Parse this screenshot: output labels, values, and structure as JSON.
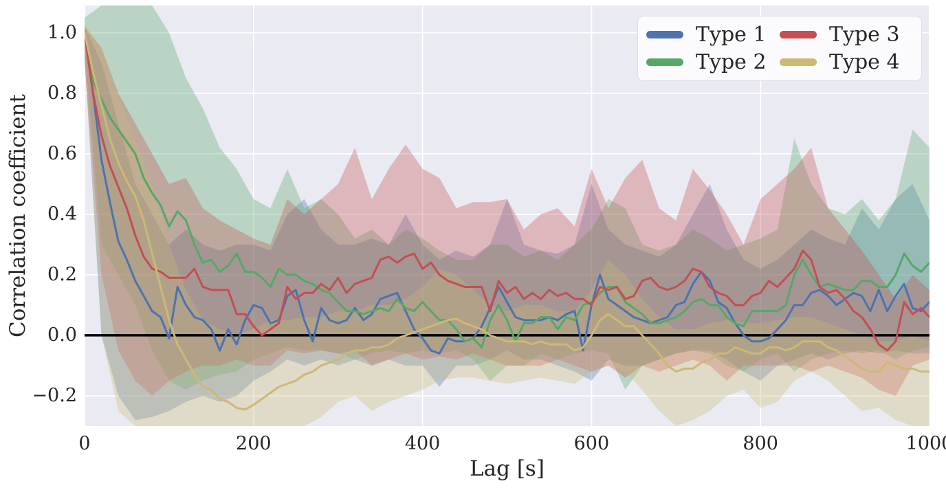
{
  "figure": {
    "background": "#ffffff",
    "plot_background": "#eaeaf2",
    "grid_color": "#ffffff",
    "zero_line_color": "#000000",
    "text_color": "#262626",
    "legend_background": "#fcfcfe",
    "legend_border": "#dcdce4"
  },
  "chart_data": {
    "type": "line",
    "title": "",
    "xlabel": "Lag [s]",
    "ylabel": "Correlation coefficient",
    "xlim": [
      0,
      1000
    ],
    "ylim": [
      -0.3,
      1.09
    ],
    "xticks": [
      0,
      200,
      400,
      600,
      800,
      1000
    ],
    "yticks": [
      -0.2,
      0.0,
      0.2,
      0.4,
      0.6,
      0.8,
      1.0
    ],
    "grid": true,
    "zero_line": true,
    "legend_position": "upper right",
    "legend_columns": 2,
    "band_opacity": 0.33,
    "x_start": 0,
    "x_step": 10,
    "band_x_step": 20,
    "series": [
      {
        "name": "Type 1",
        "color": "#4c72b0",
        "values": [
          1.0,
          0.8,
          0.58,
          0.44,
          0.31,
          0.25,
          0.18,
          0.13,
          0.08,
          0.06,
          -0.01,
          0.16,
          0.1,
          0.06,
          0.05,
          0.02,
          -0.05,
          0.02,
          -0.03,
          0.05,
          0.1,
          0.09,
          0.04,
          0.05,
          0.13,
          0.15,
          0.05,
          -0.02,
          0.09,
          0.05,
          0.04,
          0.05,
          0.09,
          0.05,
          0.07,
          0.12,
          0.13,
          0.14,
          0.08,
          0.02,
          -0.01,
          -0.05,
          -0.06,
          -0.01,
          -0.02,
          -0.02,
          -0.01,
          0.03,
          0.09,
          0.16,
          0.11,
          0.06,
          0.05,
          0.05,
          0.05,
          0.06,
          0.05,
          0.07,
          0.08,
          -0.05,
          0.1,
          0.2,
          0.12,
          0.1,
          0.08,
          0.06,
          0.05,
          0.04,
          0.05,
          0.06,
          0.1,
          0.11,
          0.17,
          0.21,
          0.18,
          0.11,
          0.09,
          0.04,
          0.0,
          -0.02,
          -0.02,
          -0.01,
          0.02,
          0.05,
          0.1,
          0.1,
          0.14,
          0.15,
          0.13,
          0.1,
          0.12,
          0.14,
          0.13,
          0.08,
          0.15,
          0.08,
          0.13,
          0.17,
          0.09,
          0.08,
          0.11
        ],
        "band_lo": [
          0.92,
          0.0,
          -0.2,
          -0.28,
          -0.27,
          -0.25,
          -0.22,
          -0.2,
          -0.22,
          -0.2,
          -0.15,
          -0.12,
          -0.08,
          -0.1,
          -0.08,
          -0.1,
          -0.08,
          -0.1,
          -0.08,
          -0.1,
          -0.1,
          -0.17,
          -0.1,
          -0.1,
          -0.08,
          -0.05,
          -0.08,
          -0.08,
          -0.1,
          -0.12,
          -0.15,
          -0.08,
          -0.1,
          -0.1,
          -0.08,
          -0.06,
          -0.05,
          -0.05,
          -0.08,
          -0.12,
          -0.15,
          -0.1,
          -0.08,
          -0.06,
          -0.08,
          -0.06,
          -0.05,
          -0.06,
          -0.05,
          -0.06,
          -0.06
        ],
        "band_hi": [
          1.02,
          0.9,
          0.7,
          0.5,
          0.4,
          0.3,
          0.35,
          0.3,
          0.28,
          0.3,
          0.3,
          0.28,
          0.4,
          0.45,
          0.35,
          0.3,
          0.3,
          0.32,
          0.3,
          0.4,
          0.3,
          0.25,
          0.28,
          0.26,
          0.3,
          0.45,
          0.3,
          0.28,
          0.27,
          0.3,
          0.5,
          0.35,
          0.3,
          0.28,
          0.26,
          0.3,
          0.4,
          0.5,
          0.35,
          0.25,
          0.22,
          0.25,
          0.3,
          0.35,
          0.32,
          0.3,
          0.42,
          0.35,
          0.45,
          0.5,
          0.38
        ]
      },
      {
        "name": "Type 2",
        "color": "#55a868",
        "values": [
          1.0,
          0.84,
          0.78,
          0.72,
          0.68,
          0.64,
          0.6,
          0.52,
          0.47,
          0.43,
          0.36,
          0.41,
          0.38,
          0.3,
          0.24,
          0.25,
          0.21,
          0.23,
          0.27,
          0.21,
          0.21,
          0.19,
          0.16,
          0.22,
          0.2,
          0.2,
          0.18,
          0.17,
          0.15,
          0.14,
          0.11,
          0.08,
          0.08,
          0.07,
          0.08,
          0.09,
          0.08,
          0.12,
          0.09,
          0.08,
          0.11,
          0.08,
          0.05,
          0.05,
          0.02,
          -0.02,
          -0.01,
          -0.04,
          0.05,
          0.1,
          0.05,
          -0.02,
          0.04,
          0.04,
          0.06,
          0.06,
          0.02,
          0.06,
          0.05,
          0.1,
          0.11,
          0.14,
          0.16,
          0.16,
          0.11,
          0.09,
          0.07,
          0.04,
          0.04,
          0.05,
          0.06,
          0.08,
          0.11,
          0.12,
          0.1,
          0.1,
          0.06,
          0.04,
          0.03,
          0.08,
          0.08,
          0.08,
          0.08,
          0.1,
          0.2,
          0.25,
          0.2,
          0.16,
          0.17,
          0.16,
          0.15,
          0.15,
          0.18,
          0.18,
          0.16,
          0.16,
          0.2,
          0.27,
          0.23,
          0.21,
          0.24
        ],
        "band_lo": [
          0.95,
          0.3,
          0.2,
          0.1,
          -0.05,
          -0.15,
          -0.18,
          -0.15,
          -0.13,
          -0.12,
          -0.08,
          -0.06,
          -0.04,
          -0.05,
          -0.05,
          -0.06,
          -0.08,
          -0.06,
          -0.05,
          -0.06,
          -0.05,
          -0.06,
          -0.05,
          -0.08,
          -0.15,
          -0.1,
          -0.1,
          -0.06,
          -0.08,
          -0.06,
          -0.05,
          -0.06,
          -0.18,
          -0.1,
          -0.08,
          -0.06,
          -0.05,
          -0.06,
          -0.1,
          -0.12,
          -0.08,
          -0.06,
          -0.12,
          -0.08,
          -0.06,
          -0.05,
          -0.06,
          -0.05,
          -0.08,
          -0.05,
          -0.04
        ],
        "band_hi": [
          1.05,
          1.09,
          1.09,
          1.09,
          1.09,
          1.0,
          0.85,
          0.75,
          0.62,
          0.55,
          0.45,
          0.42,
          0.55,
          0.42,
          0.45,
          0.4,
          0.32,
          0.35,
          0.3,
          0.35,
          0.32,
          0.28,
          0.25,
          0.25,
          0.3,
          0.3,
          0.26,
          0.28,
          0.25,
          0.3,
          0.35,
          0.45,
          0.42,
          0.3,
          0.28,
          0.3,
          0.35,
          0.32,
          0.28,
          0.3,
          0.32,
          0.35,
          0.65,
          0.5,
          0.42,
          0.4,
          0.45,
          0.38,
          0.45,
          0.68,
          0.62
        ]
      },
      {
        "name": "Type 3",
        "color": "#c44e52",
        "values": [
          1.0,
          0.8,
          0.66,
          0.56,
          0.49,
          0.42,
          0.33,
          0.26,
          0.22,
          0.21,
          0.19,
          0.19,
          0.19,
          0.22,
          0.16,
          0.15,
          0.15,
          0.15,
          0.07,
          0.07,
          0.03,
          0.0,
          0.02,
          0.04,
          0.16,
          0.12,
          0.14,
          0.14,
          0.17,
          0.15,
          0.19,
          0.14,
          0.17,
          0.18,
          0.19,
          0.25,
          0.26,
          0.24,
          0.26,
          0.27,
          0.22,
          0.24,
          0.2,
          0.18,
          0.17,
          0.16,
          0.16,
          0.16,
          0.08,
          0.18,
          0.14,
          0.16,
          0.12,
          0.14,
          0.12,
          0.15,
          0.13,
          0.14,
          0.12,
          0.12,
          0.1,
          0.16,
          0.15,
          0.16,
          0.12,
          0.13,
          0.18,
          0.19,
          0.16,
          0.15,
          0.16,
          0.18,
          0.22,
          0.21,
          0.16,
          0.14,
          0.13,
          0.1,
          0.1,
          0.13,
          0.14,
          0.18,
          0.16,
          0.19,
          0.22,
          0.28,
          0.25,
          0.16,
          0.14,
          0.15,
          0.12,
          0.08,
          0.06,
          0.02,
          -0.03,
          -0.05,
          -0.02,
          0.11,
          0.07,
          0.09,
          0.06
        ],
        "band_lo": [
          0.9,
          0.2,
          -0.05,
          -0.15,
          -0.2,
          -0.15,
          -0.12,
          -0.1,
          -0.1,
          -0.08,
          -0.1,
          -0.1,
          -0.05,
          -0.06,
          -0.05,
          -0.06,
          -0.05,
          -0.1,
          -0.08,
          -0.06,
          -0.08,
          -0.07,
          -0.08,
          -0.06,
          -0.08,
          -0.1,
          -0.1,
          -0.1,
          -0.08,
          -0.1,
          -0.12,
          -0.1,
          -0.14,
          -0.1,
          -0.12,
          -0.1,
          -0.08,
          -0.1,
          -0.15,
          -0.1,
          -0.1,
          -0.1,
          -0.1,
          -0.12,
          -0.1,
          -0.12,
          -0.14,
          -0.18,
          -0.2,
          -0.1,
          -0.08
        ],
        "band_hi": [
          1.02,
          0.95,
          0.8,
          0.7,
          0.6,
          0.5,
          0.52,
          0.42,
          0.38,
          0.35,
          0.32,
          0.3,
          0.45,
          0.4,
          0.45,
          0.5,
          0.62,
          0.45,
          0.55,
          0.63,
          0.55,
          0.52,
          0.42,
          0.44,
          0.44,
          0.45,
          0.35,
          0.4,
          0.42,
          0.36,
          0.55,
          0.42,
          0.52,
          0.58,
          0.42,
          0.38,
          0.55,
          0.48,
          0.4,
          0.3,
          0.45,
          0.5,
          0.55,
          0.62,
          0.42,
          0.35,
          0.28,
          0.2,
          0.12,
          0.2,
          0.15
        ]
      },
      {
        "name": "Type 4",
        "color": "#ccb974",
        "values": [
          1.0,
          0.87,
          0.76,
          0.65,
          0.57,
          0.51,
          0.46,
          0.38,
          0.27,
          0.16,
          0.05,
          -0.03,
          -0.08,
          -0.13,
          -0.17,
          -0.18,
          -0.21,
          -0.22,
          -0.24,
          -0.245,
          -0.23,
          -0.21,
          -0.19,
          -0.17,
          -0.16,
          -0.15,
          -0.13,
          -0.12,
          -0.1,
          -0.09,
          -0.08,
          -0.06,
          -0.05,
          -0.05,
          -0.04,
          -0.04,
          -0.03,
          -0.01,
          0.0,
          0.01,
          0.02,
          0.03,
          0.04,
          0.05,
          0.055,
          0.04,
          0.03,
          0.02,
          0.0,
          -0.01,
          -0.02,
          -0.02,
          -0.02,
          -0.03,
          -0.02,
          -0.03,
          -0.03,
          -0.03,
          -0.05,
          -0.04,
          0.0,
          0.05,
          0.07,
          0.05,
          0.03,
          0.03,
          0.0,
          -0.03,
          -0.06,
          -0.1,
          -0.12,
          -0.11,
          -0.11,
          -0.09,
          -0.08,
          -0.06,
          -0.06,
          -0.04,
          -0.05,
          -0.06,
          -0.06,
          -0.04,
          -0.04,
          -0.05,
          -0.04,
          -0.02,
          -0.02,
          -0.02,
          -0.04,
          -0.05,
          -0.07,
          -0.09,
          -0.11,
          -0.12,
          -0.12,
          -0.09,
          -0.1,
          -0.11,
          -0.11,
          -0.12,
          -0.12
        ],
        "band_lo": [
          0.92,
          0.0,
          -0.25,
          -0.3,
          -0.3,
          -0.3,
          -0.3,
          -0.32,
          -0.32,
          -0.35,
          -0.35,
          -0.33,
          -0.32,
          -0.3,
          -0.27,
          -0.22,
          -0.2,
          -0.25,
          -0.22,
          -0.2,
          -0.18,
          -0.15,
          -0.14,
          -0.14,
          -0.15,
          -0.16,
          -0.15,
          -0.14,
          -0.15,
          -0.16,
          -0.12,
          -0.1,
          -0.12,
          -0.18,
          -0.25,
          -0.3,
          -0.28,
          -0.25,
          -0.2,
          -0.18,
          -0.24,
          -0.22,
          -0.15,
          -0.12,
          -0.15,
          -0.2,
          -0.25,
          -0.24,
          -0.28,
          -0.3,
          -0.3
        ],
        "band_hi": [
          1.03,
          0.95,
          0.8,
          0.65,
          0.5,
          0.3,
          0.15,
          0.05,
          0.02,
          0.0,
          0.02,
          0.05,
          0.05,
          0.06,
          0.06,
          0.08,
          0.08,
          0.1,
          0.1,
          0.12,
          0.16,
          0.22,
          0.2,
          0.15,
          0.1,
          0.08,
          0.1,
          0.1,
          0.08,
          0.08,
          0.15,
          0.25,
          0.2,
          0.12,
          0.06,
          0.02,
          0.02,
          0.04,
          0.05,
          0.04,
          0.04,
          0.05,
          0.06,
          0.06,
          0.04,
          0.02,
          0.0,
          -0.02,
          -0.02,
          0.0,
          -0.02
        ]
      }
    ]
  }
}
